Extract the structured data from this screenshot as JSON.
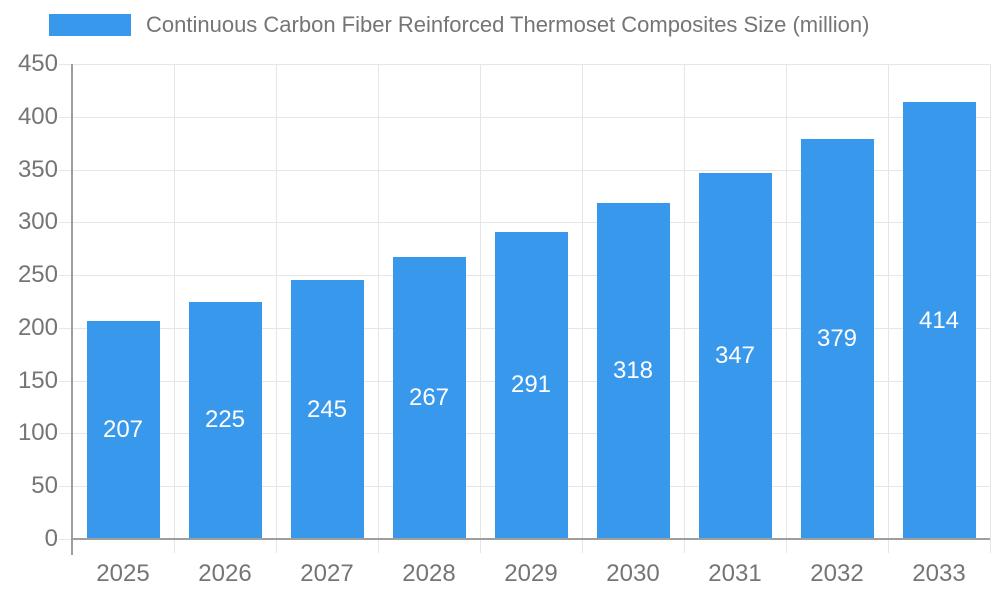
{
  "legend": {
    "label": "Continuous Carbon Fiber Reinforced Thermoset Composites Size (million)"
  },
  "colors": {
    "background": "#FFFFFF",
    "bar": "#3898EC",
    "grid": "#E6E6E6",
    "axis": "#9E9E9E",
    "text": "#757575",
    "bar_label": "#FFFFFF"
  },
  "chart_data": {
    "type": "bar",
    "title": "Continuous Carbon Fiber Reinforced Thermoset Composites Size (million)",
    "categories": [
      "2025",
      "2026",
      "2027",
      "2028",
      "2029",
      "2030",
      "2031",
      "2032",
      "2033"
    ],
    "values": [
      207,
      225,
      245,
      267,
      291,
      318,
      347,
      379,
      414
    ],
    "xlabel": "",
    "ylabel": "",
    "ylim": [
      0,
      450
    ],
    "yticks": [
      0,
      50,
      100,
      150,
      200,
      250,
      300,
      350,
      400,
      450
    ],
    "grid": true,
    "legend_position": "top-left",
    "value_labels": "inside-middle-white"
  }
}
